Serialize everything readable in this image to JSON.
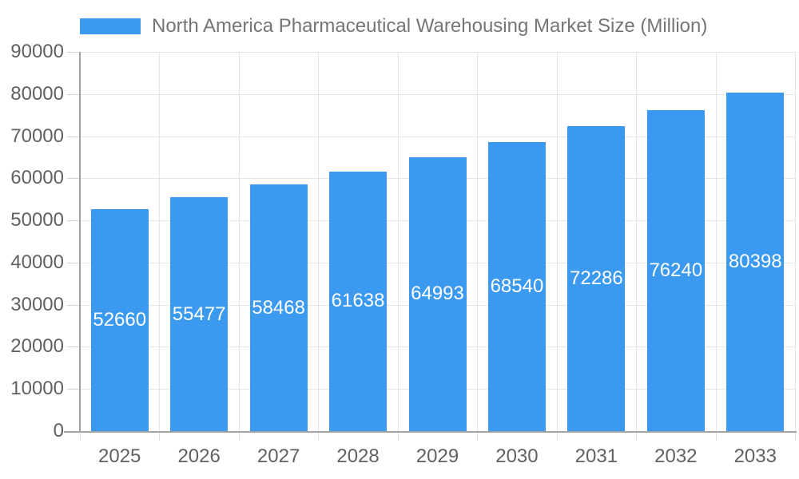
{
  "legend": {
    "label": "North America Pharmaceutical Warehousing Market Size (Million)"
  },
  "chart_data": {
    "type": "bar",
    "title": "North America Pharmaceutical Warehousing Market Size (Million)",
    "categories": [
      "2025",
      "2026",
      "2027",
      "2028",
      "2029",
      "2030",
      "2031",
      "2032",
      "2033"
    ],
    "values": [
      52660,
      55477,
      58468,
      61638,
      64993,
      68540,
      72286,
      76240,
      80398
    ],
    "series": [
      {
        "name": "North America Pharmaceutical Warehousing Market Size (Million)",
        "values": [
          52660,
          55477,
          58468,
          61638,
          64993,
          68540,
          72286,
          76240,
          80398
        ]
      }
    ],
    "xlabel": "",
    "ylabel": "",
    "ylim": [
      0,
      90000
    ],
    "ytick_values": [
      0,
      10000,
      20000,
      30000,
      40000,
      50000,
      60000,
      70000,
      80000,
      90000
    ],
    "ytick_labels": [
      "0",
      "10000",
      "20000",
      "30000",
      "40000",
      "50000",
      "60000",
      "70000",
      "80000",
      "90000"
    ],
    "grid": true,
    "legend_position": "top-left",
    "value_labels_inside_bars": true,
    "colors": {
      "bar": "#3B9AF0",
      "bar_value_label": "#ffffff",
      "axis_text": "#616161",
      "title_text": "#757575",
      "gridline": "#e5e5e5",
      "axis_line": "#a3a3a3",
      "background": "#ffffff"
    }
  }
}
